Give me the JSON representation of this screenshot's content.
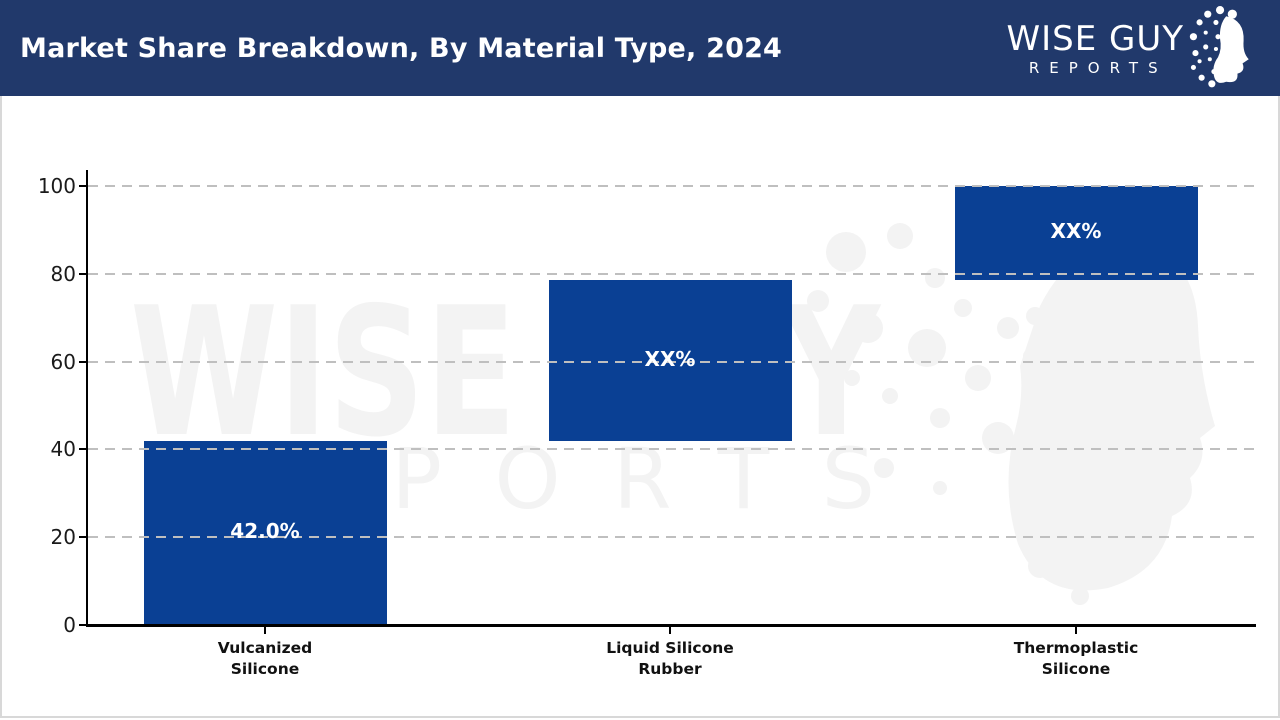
{
  "header": {
    "title": "Market Share Breakdown, By Material Type, 2024",
    "logo": {
      "wordmark": "WISE GUY",
      "subtext": "REPORTS"
    }
  },
  "watermark": {
    "wordmark": "WISE GUY",
    "subtext": "REPORTS"
  },
  "chart_data": {
    "type": "bar",
    "variant": "waterfall",
    "title": "Market Share Breakdown, By Material Type, 2024",
    "categories": [
      "Vulcanized Silicone",
      "Liquid Silicone Rubber",
      "Thermoplastic Silicone"
    ],
    "category_label_lines": [
      [
        "Vulcanized",
        "Silicone"
      ],
      [
        "Liquid Silicone",
        "Rubber"
      ],
      [
        "Thermoplastic",
        "Silicone"
      ]
    ],
    "segments": [
      {
        "category": "Vulcanized Silicone",
        "start": 0,
        "end": 42.0,
        "label": "42.0%"
      },
      {
        "category": "Liquid Silicone Rubber",
        "start": 42.0,
        "end": 78.5,
        "label": "XX%"
      },
      {
        "category": "Thermoplastic Silicone",
        "start": 78.5,
        "end": 100.0,
        "label": "XX%"
      }
    ],
    "ylim": [
      0,
      100
    ],
    "yticks": [
      0,
      20,
      40,
      60,
      80,
      100
    ],
    "grid": {
      "axis": "y",
      "style": "dashed",
      "drawn_above_bars": true
    },
    "legend": "none",
    "colors": {
      "bar": "#0a4094",
      "bar_label": "#ffffff",
      "grid": "#bfbfbf",
      "axis": "#000000",
      "header_bg": "#21396b",
      "header_text": "#ffffff",
      "watermark": "#f3f3f3"
    }
  }
}
